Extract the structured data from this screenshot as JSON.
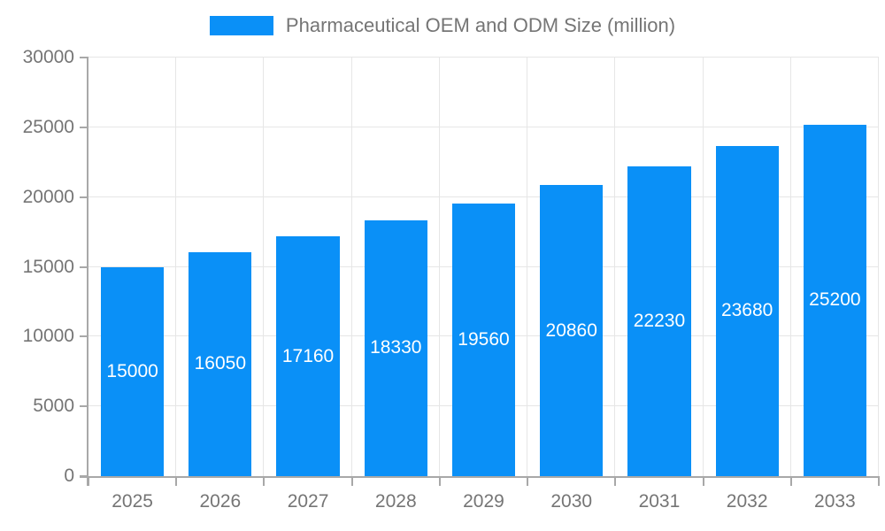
{
  "chart_data": {
    "type": "bar",
    "title": "Pharmaceutical OEM and ODM Size (million)",
    "legend": {
      "position": "top",
      "items": [
        {
          "label": "Pharmaceutical OEM and ODM Size (million)",
          "swatch_color": "#0a90f7"
        }
      ]
    },
    "categories": [
      "2025",
      "2026",
      "2027",
      "2028",
      "2029",
      "2030",
      "2031",
      "2032",
      "2033"
    ],
    "series": [
      {
        "name": "Pharmaceutical OEM and ODM Size (million)",
        "values": [
          15000,
          16050,
          17160,
          18330,
          19560,
          20860,
          22230,
          23680,
          25200
        ]
      }
    ],
    "bar_value_labels": [
      "15000",
      "16050",
      "17160",
      "18330",
      "19560",
      "20860",
      "22230",
      "23680",
      "25200"
    ],
    "xlabel": "",
    "ylabel": "",
    "ylim": [
      0,
      30000
    ],
    "yticks": [
      0,
      5000,
      10000,
      15000,
      20000,
      25000,
      30000
    ],
    "grid": true,
    "colors": {
      "bar": "#0a90f7",
      "bar_label_text": "#ffffff",
      "axis_text": "#757575",
      "gridline": "#e6e6e6",
      "axis_line": "#a8a8a8",
      "background": "#ffffff"
    }
  }
}
